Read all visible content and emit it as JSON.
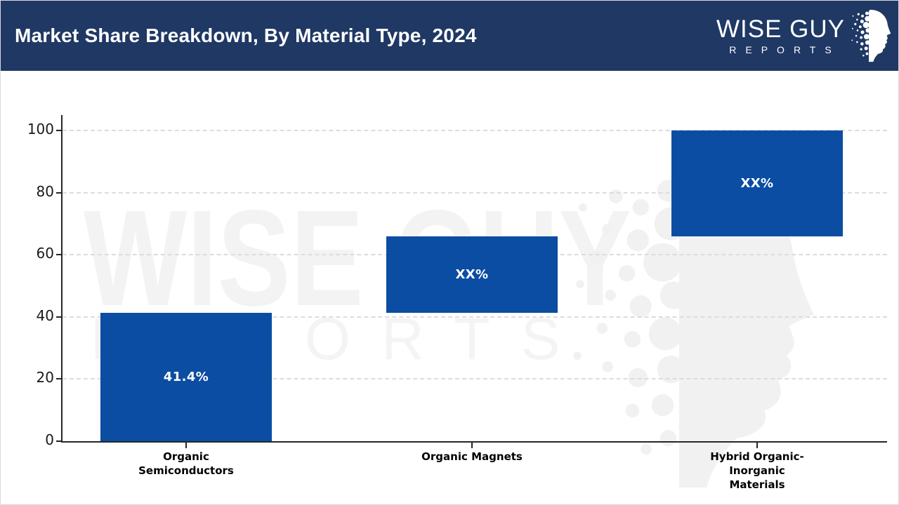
{
  "colors": {
    "header_bg": "#1f3864",
    "bar_fill": "#0b4da2",
    "bar_label_text": "#ffffff",
    "grid_line": "#dcdcdc",
    "axis_line": "#262626",
    "watermark": "#f2f2f2",
    "page_border": "#d9d9d9"
  },
  "header": {
    "title": "Market Share Breakdown, By Material Type, 2024",
    "logo": {
      "line1": "WISE GUY",
      "line2": "REPORTS"
    }
  },
  "watermark": {
    "line1": "WISE GUY",
    "line2": "REPORTS"
  },
  "icons": {
    "logo_face": "head-profile-made-of-dots"
  },
  "chart_data": {
    "type": "bar",
    "subtype": "waterfall",
    "title": "Market Share Breakdown, By Material Type, 2024",
    "xlabel": "",
    "ylabel": "",
    "ylim": [
      0,
      106
    ],
    "yticks": [
      0,
      20,
      40,
      60,
      80,
      100
    ],
    "grid": "horizontal-dashed",
    "legend": "none",
    "categories": [
      [
        "Organic",
        "Semiconductors"
      ],
      [
        "Organic Magnets"
      ],
      [
        "Hybrid Organic-",
        "Inorganic",
        "Materials"
      ]
    ],
    "bars": [
      {
        "category": "Organic Semiconductors",
        "start": 0,
        "end": 41.4,
        "label": "41.4%"
      },
      {
        "category": "Organic Magnets",
        "start": 41.4,
        "end": 66,
        "label": "XX%"
      },
      {
        "category": "Hybrid Organic-Inorganic Materials",
        "start": 66,
        "end": 100,
        "label": "XX%"
      }
    ]
  }
}
